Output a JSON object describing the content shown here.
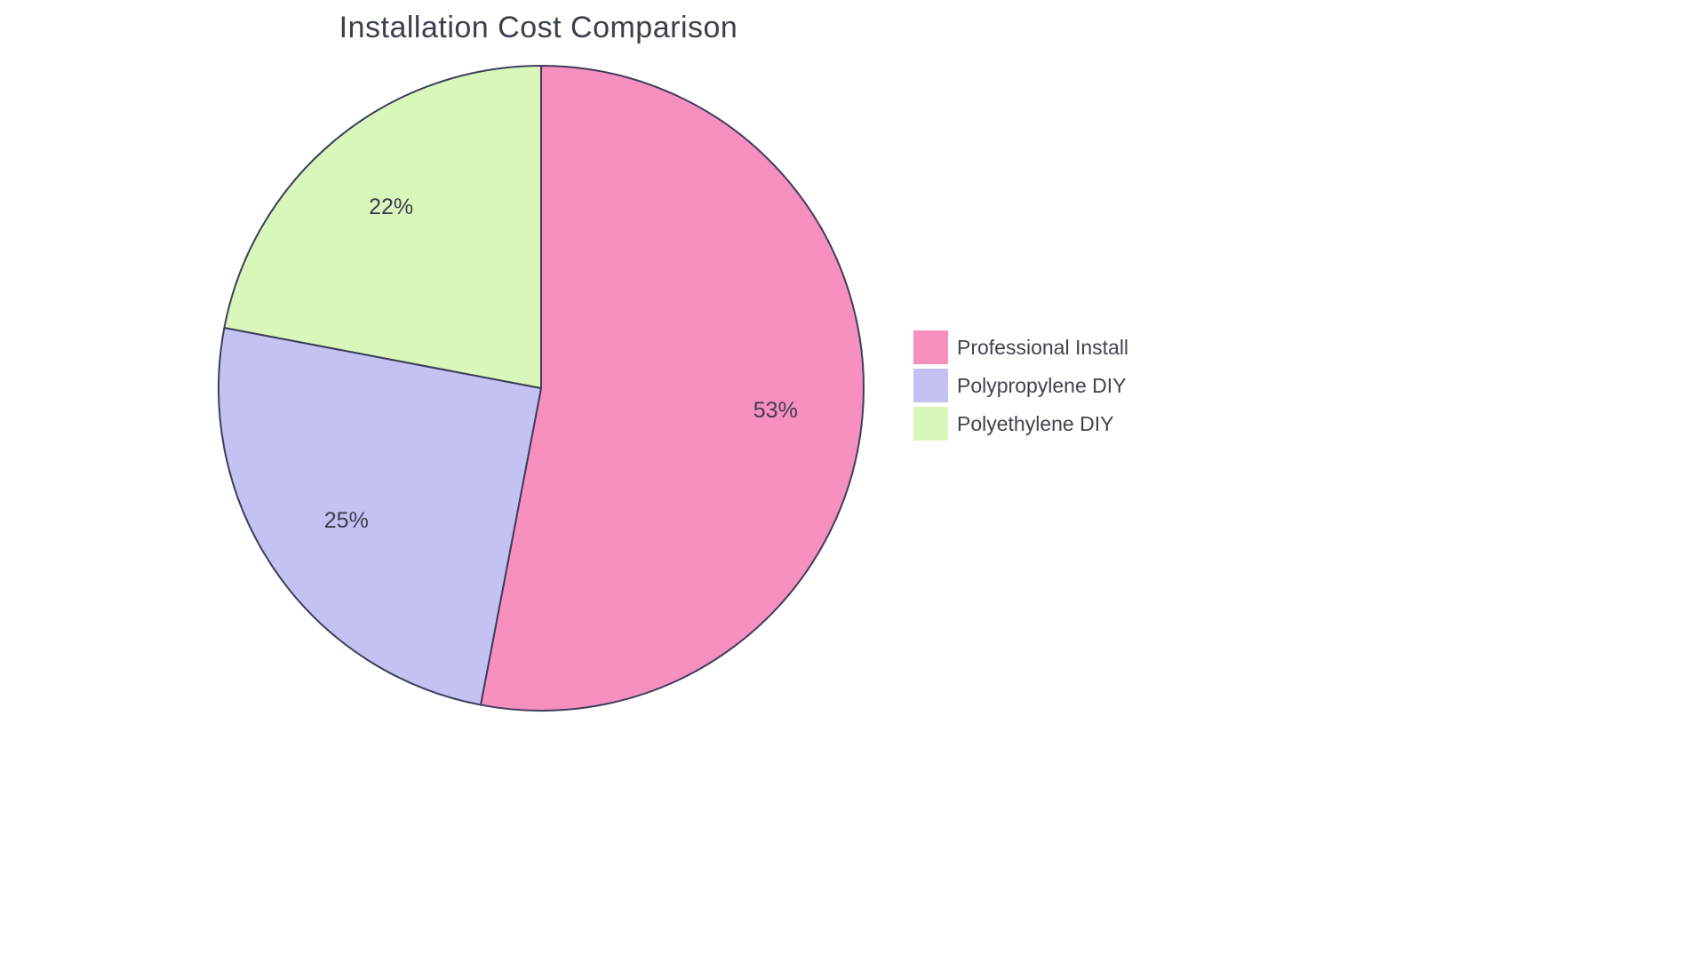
{
  "chart_data": {
    "type": "pie",
    "title": "Installation Cost Comparison",
    "slices": [
      {
        "label": "Professional Install",
        "value": 53,
        "display": "53%",
        "color": "#F78FBF"
      },
      {
        "label": "Polypropylene DIY",
        "value": 25,
        "display": "25%",
        "color": "#C4C2F2"
      },
      {
        "label": "Polyethylene DIY",
        "value": 22,
        "display": "22%",
        "color": "#D9F7BA"
      }
    ],
    "start_angle_deg": -90,
    "clockwise": true,
    "stroke_color": "#3D3D5C",
    "slice_label_color": "#3C3C4E",
    "legend_position": "right",
    "grid": "off",
    "background": "#FFFFFF"
  }
}
